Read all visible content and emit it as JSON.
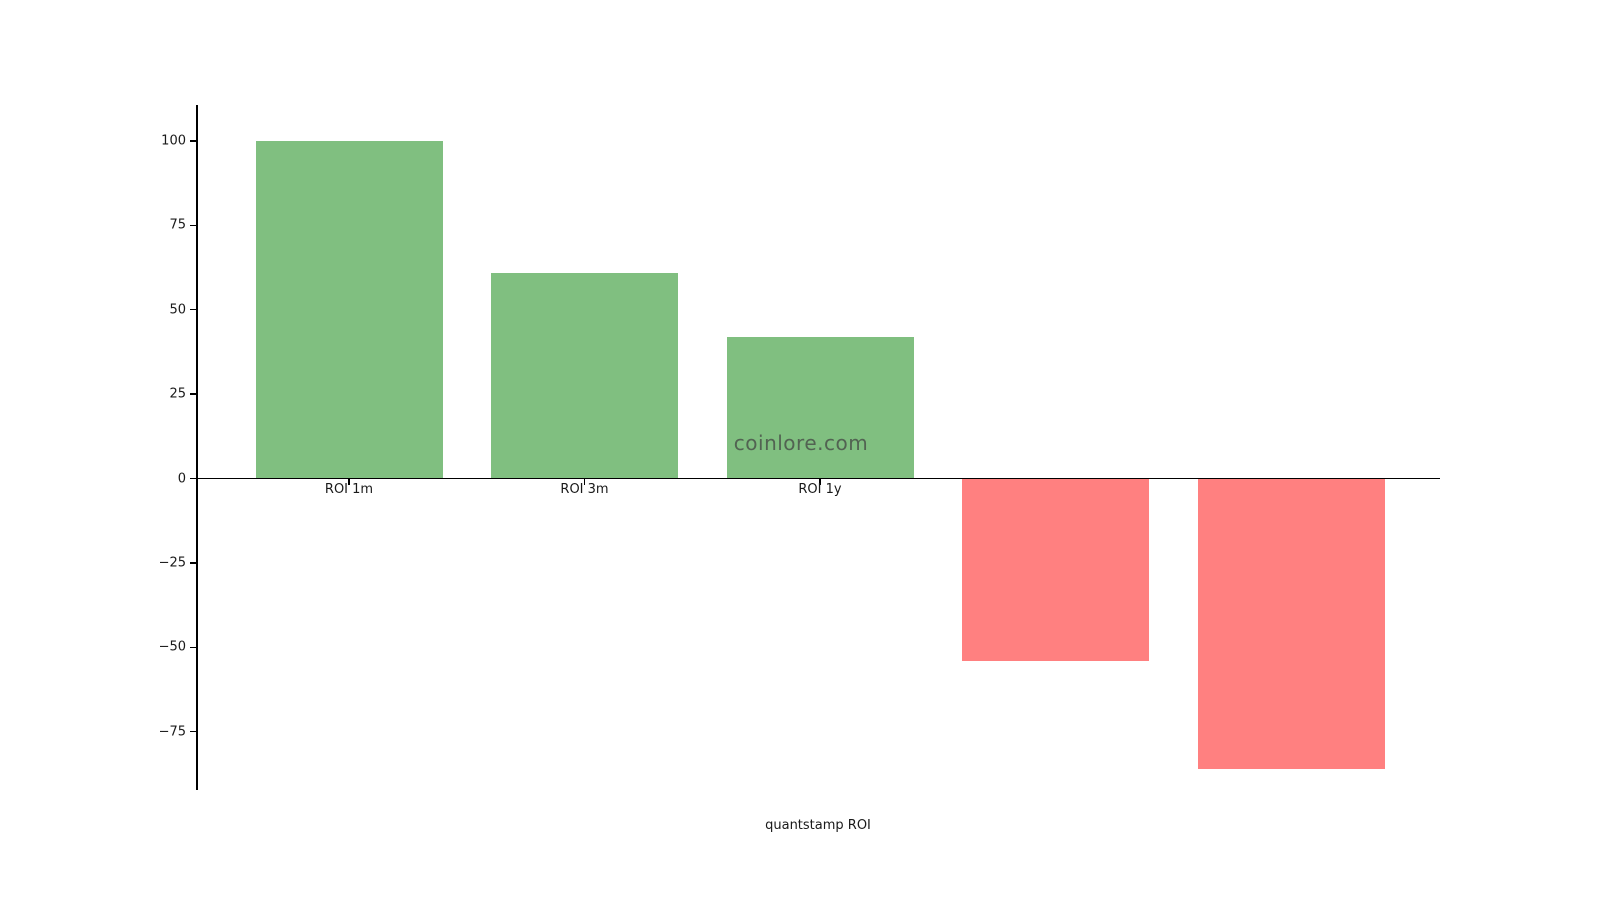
{
  "chart_data": {
    "type": "bar",
    "title": "",
    "xlabel": "quantstamp ROI",
    "ylabel": "",
    "categories": [
      "ROI 1m",
      "ROI 3m",
      "ROI 1y",
      "",
      ""
    ],
    "values": [
      100,
      61,
      42,
      -54,
      -86
    ],
    "bar_colors": [
      "#80BF80",
      "#80BF80",
      "#80BF80",
      "#FF8080",
      "#FF8080"
    ],
    "positive_color": "#80BF80",
    "negative_color": "#FF8080",
    "yticks": [
      100,
      75,
      50,
      25,
      0,
      -25,
      -50,
      -75
    ],
    "ylim": [
      -92,
      111
    ],
    "grid": false,
    "legend": "none",
    "watermark": "coinlore.com"
  },
  "colors": {
    "axis": "#000000",
    "tick_text": "#1a1a1a",
    "watermark": "rgba(64,64,64,0.72)",
    "background": "#ffffff"
  }
}
